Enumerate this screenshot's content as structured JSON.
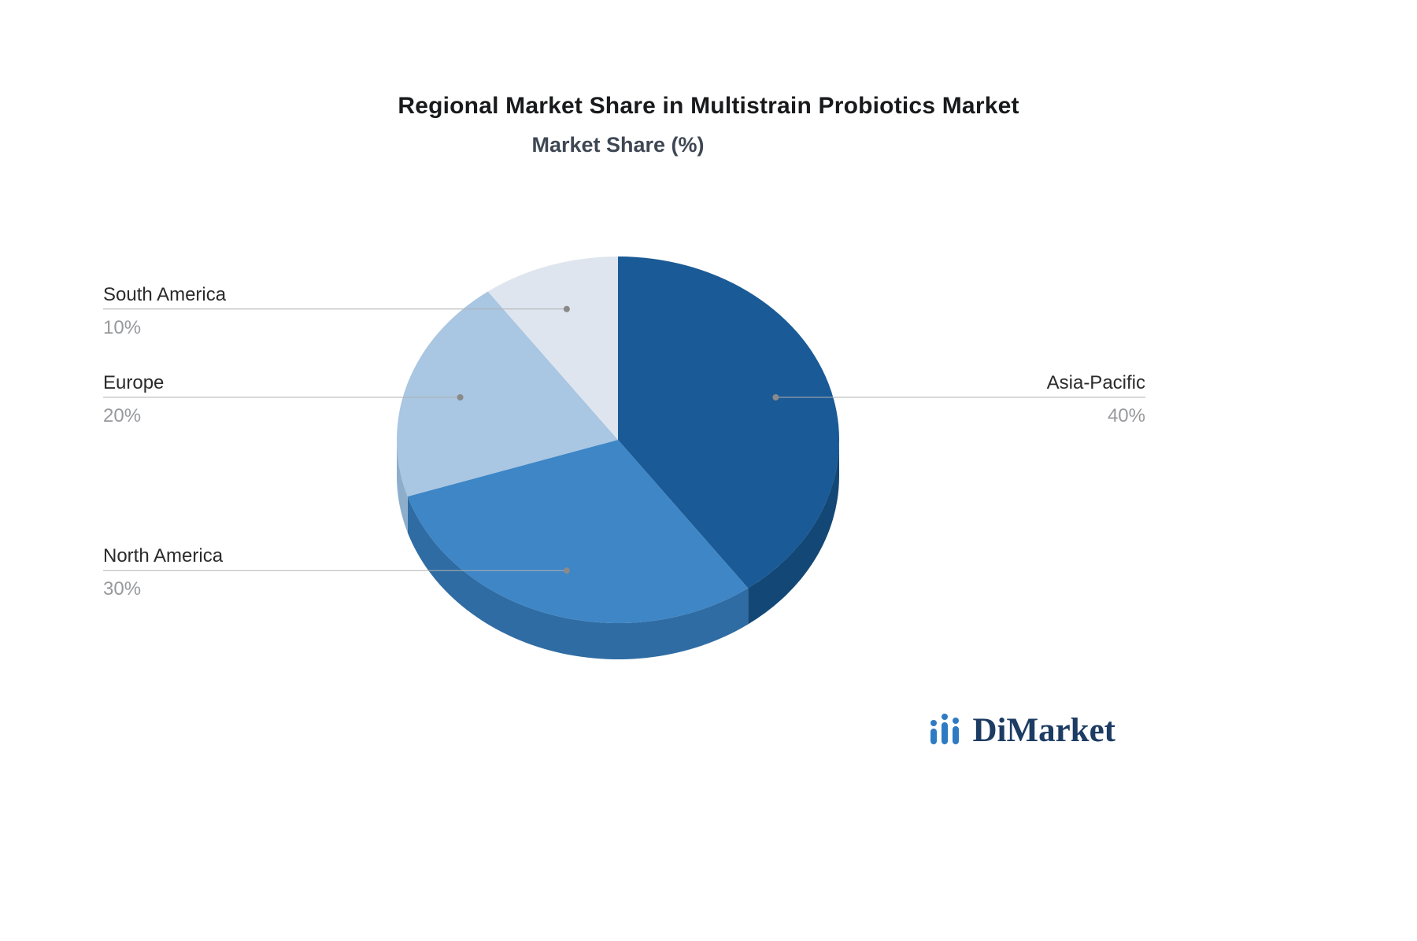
{
  "header": {
    "title": "Regional Market Share in Multistrain Probiotics Market",
    "subtitle": "Market Share (%)"
  },
  "logo": {
    "text": "DiMarket",
    "text_color": "#1d3c63",
    "icon": "bar-chart-icon",
    "icon_color": "#2e7bc3"
  },
  "chart_data": {
    "type": "pie",
    "style": "3d",
    "title": "Regional Market Share in Multistrain Probiotics Market",
    "subtitle": "Market Share (%)",
    "unit": "%",
    "direction": "clockwise",
    "start_angle_deg": 0,
    "legend_position": "callout-labels",
    "slices": [
      {
        "label": "Asia-Pacific",
        "value": 40,
        "display": "40%",
        "color": "#1A5A96",
        "side_color": "#134876",
        "label_side": "right"
      },
      {
        "label": "North America",
        "value": 30,
        "display": "30%",
        "color": "#3E86C6",
        "side_color": "#2F6CA3",
        "label_side": "left"
      },
      {
        "label": "Europe",
        "value": 20,
        "display": "20%",
        "color": "#A9C6E2",
        "side_color": "#8CAECB",
        "label_side": "left"
      },
      {
        "label": "South America",
        "value": 10,
        "display": "10%",
        "color": "#DEE5EF",
        "side_color": "#C2CEDE",
        "label_side": "left"
      }
    ],
    "label_text_color": "#2b2b2b",
    "value_text_color": "#97999c",
    "leader_line_color": "#b0b0b0",
    "leader_dot_color": "#8a8a8a"
  }
}
